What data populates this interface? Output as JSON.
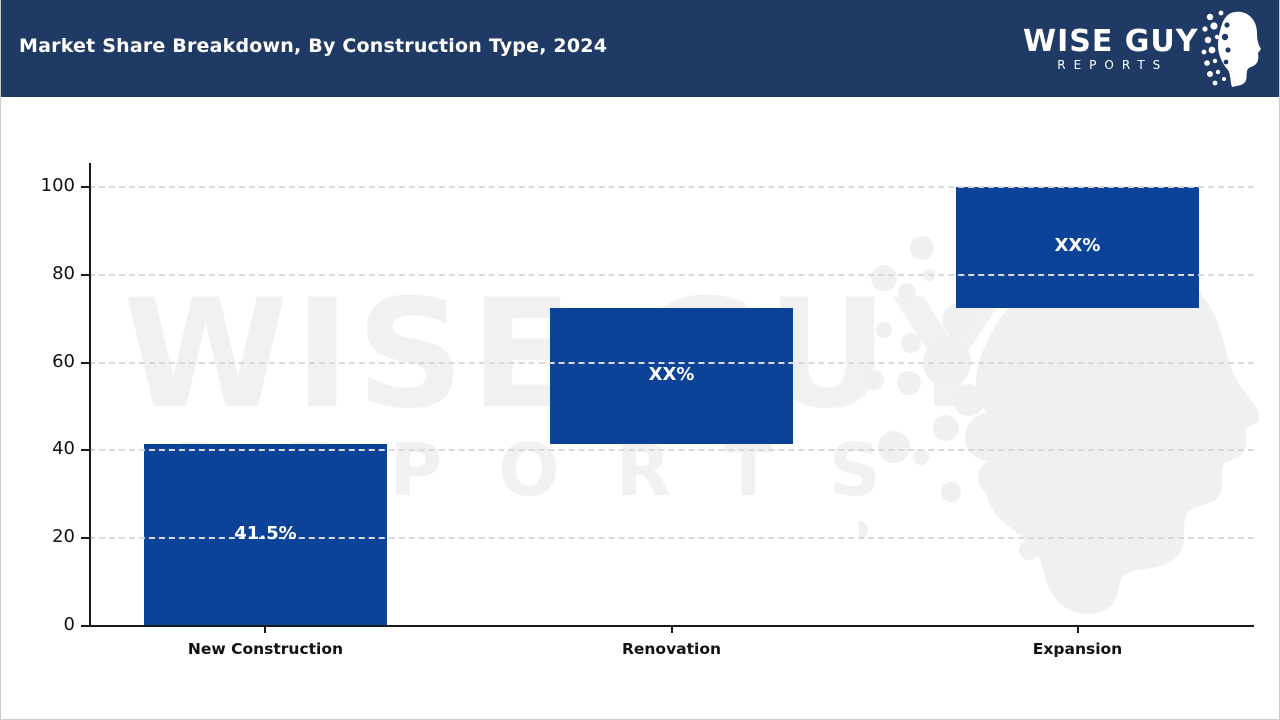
{
  "header": {
    "title": "Market Share Breakdown, By Construction Type, 2024",
    "logo": {
      "line1": "WISE GUY",
      "line2": "REPORTS"
    }
  },
  "watermark": {
    "line1": "WISE GUY",
    "line2": "REPORTS"
  },
  "colors": {
    "header_bg": "#203a66",
    "bar": "#0c4398",
    "bar_label": "#ffffff",
    "grid": "#d9d9d9",
    "watermark": "#f1f1f4",
    "axis": "#1a1a1a"
  },
  "chart_data": {
    "type": "bar",
    "variant": "waterfall",
    "title": "Market Share Breakdown, By Construction Type, 2024",
    "categories": [
      "New Construction",
      "Renovation",
      "Expansion"
    ],
    "segments": [
      {
        "category": "New Construction",
        "start": 0,
        "end": 41.5,
        "value": 41.5,
        "label": "41.5%"
      },
      {
        "category": "Renovation",
        "start": 41.5,
        "end": 72.5,
        "value": 31,
        "label": "XX%"
      },
      {
        "category": "Expansion",
        "start": 72.5,
        "end": 100,
        "value": 27.5,
        "label": "XX%"
      }
    ],
    "xlabel": "",
    "ylabel": "",
    "yticks": [
      0,
      20,
      40,
      60,
      80,
      100
    ],
    "ylim": [
      0,
      105.5
    ],
    "grid": "horizontal dashed",
    "legend": "none"
  }
}
